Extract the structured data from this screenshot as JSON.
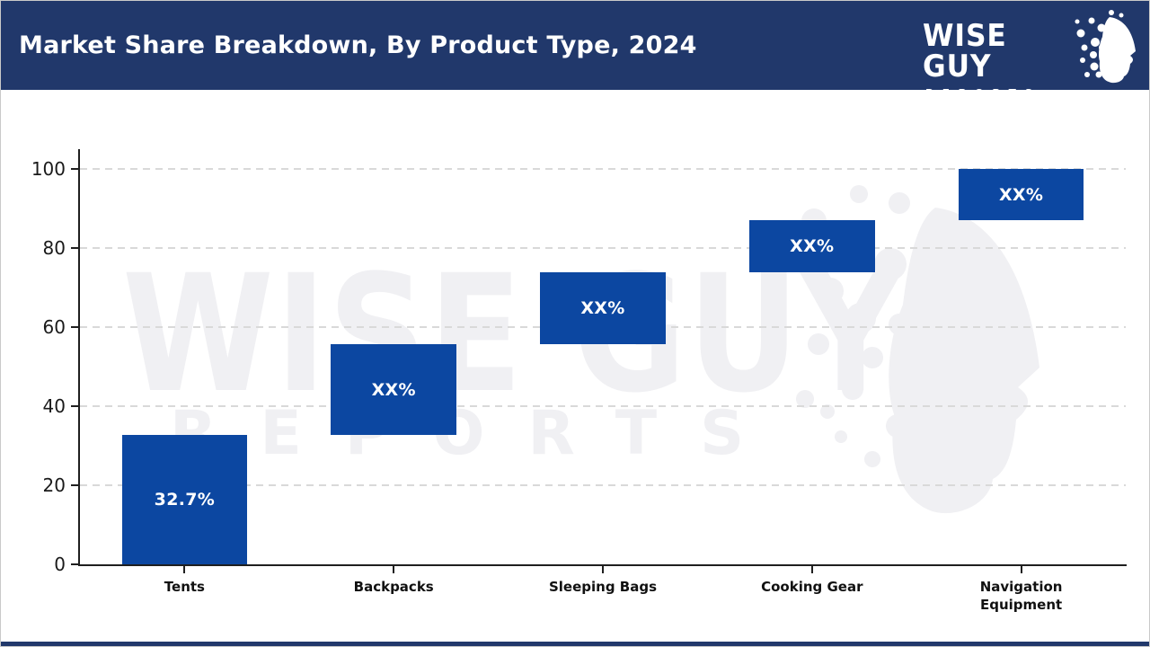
{
  "header": {
    "title": "Market Share Breakdown, By Product Type, 2024",
    "logo": {
      "line1": "WISE GUY",
      "line2": "REPORTS"
    }
  },
  "watermark": {
    "line1": "WISE GUY",
    "line2": "REPORTS"
  },
  "chart_data": {
    "type": "bar",
    "subtype": "waterfall",
    "title": "Market Share Breakdown, By Product Type, 2024",
    "categories": [
      "Tents",
      "Backpacks",
      "Sleeping Bags",
      "Cooking Gear",
      "Navigation Equipment"
    ],
    "segments": [
      {
        "category": "Tents",
        "start": 0,
        "end": 32.7,
        "label": "32.7%"
      },
      {
        "category": "Backpacks",
        "start": 32.7,
        "end": 55.6,
        "label": "XX%"
      },
      {
        "category": "Sleeping Bags",
        "start": 55.6,
        "end": 73.9,
        "label": "XX%"
      },
      {
        "category": "Cooking Gear",
        "start": 73.9,
        "end": 87.0,
        "label": "XX%"
      },
      {
        "category": "Navigation Equipment",
        "start": 87.0,
        "end": 100,
        "label": "XX%"
      }
    ],
    "xlabel": "",
    "ylabel": "",
    "ylim": [
      0,
      100
    ],
    "yticks": [
      0,
      20,
      40,
      60,
      80,
      100
    ],
    "grid": "horizontal-dashed",
    "legend": "none"
  },
  "colors": {
    "header_bg": "#21386B",
    "title": "#FFFFFF",
    "bar": "#0C47A1",
    "bar_label": "#FFFFFF",
    "axis": "#1F1F1F",
    "tick_label": "#1A1A1A",
    "grid": "#D9D9D9",
    "watermark": "#F0F0F3"
  }
}
